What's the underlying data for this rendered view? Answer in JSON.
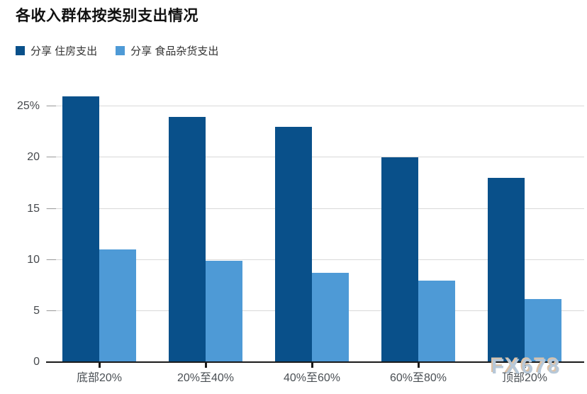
{
  "title": "各收入群体按类别支出情况",
  "watermark": "FX678",
  "chart_data": {
    "type": "bar",
    "title": "各收入群体按类别支出情况",
    "categories": [
      "底部20%",
      "20%至40%",
      "40%至60%",
      "60%至80%",
      "顶部20%"
    ],
    "series": [
      {
        "name": "分享 住房支出",
        "color": "#09508a",
        "values": [
          26,
          24,
          23,
          20,
          18
        ]
      },
      {
        "name": "分享 食品杂货支出",
        "color": "#4e9ad6",
        "values": [
          11,
          9.9,
          8.7,
          8,
          6.2
        ]
      }
    ],
    "ylabel": "",
    "xlabel": "",
    "ylim": [
      0,
      26.4
    ],
    "yticks": [
      {
        "value": 0,
        "label": "0"
      },
      {
        "value": 5,
        "label": "5"
      },
      {
        "value": 10,
        "label": "10"
      },
      {
        "value": 15,
        "label": "15"
      },
      {
        "value": 20,
        "label": "20"
      },
      {
        "value": 25,
        "label": "25%"
      }
    ],
    "grid": "horizontal",
    "legend_position": "top-left",
    "colors": {
      "grid_line": "#d9d9d9",
      "ytick_mark": "#999999",
      "axis_line": "#1a1a1a",
      "xtick_mark": "#1a1a1a",
      "title_text": "#111111",
      "legend_text": "#333333",
      "axis_label_text": "#46494d",
      "watermark_fill": "#b7c8d8",
      "watermark_shadow": "#dcc2a7"
    }
  }
}
